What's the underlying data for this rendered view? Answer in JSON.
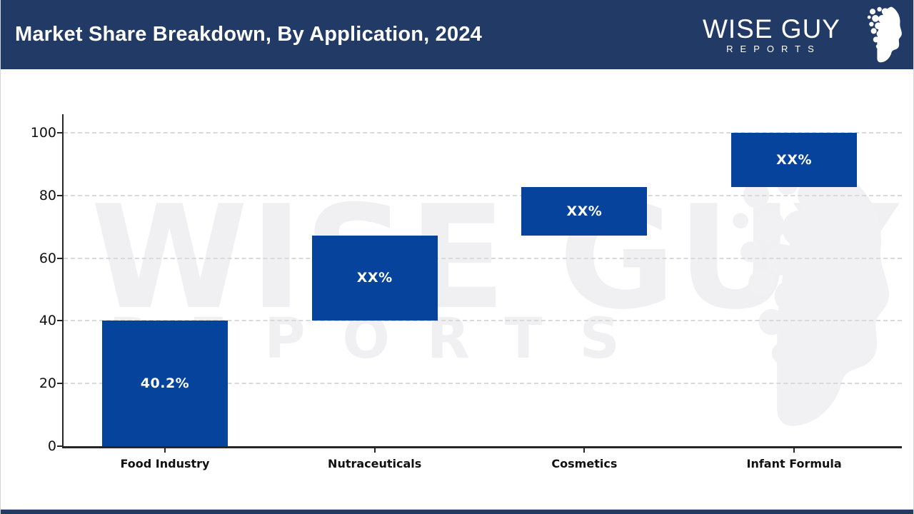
{
  "header": {
    "title": "Market Share Breakdown, By Application, 2024",
    "bg_color": "#213A66"
  },
  "logo": {
    "line1": "WISE GUY",
    "line2": "REPORTS"
  },
  "watermark": {
    "line1": "WISE GUY",
    "line2": "REPORTS"
  },
  "chart_data": {
    "type": "bar",
    "subtype": "waterfall",
    "title": "Market Share Breakdown, By Application, 2024",
    "categories": [
      "Food Industry",
      "Nutraceuticals",
      "Cosmetics",
      "Infant Formula"
    ],
    "segments": [
      {
        "start": 0,
        "end": 40.2
      },
      {
        "start": 40.2,
        "end": 67.2
      },
      {
        "start": 67.2,
        "end": 82.7
      },
      {
        "start": 82.7,
        "end": 100
      }
    ],
    "values": [
      40.2,
      27.0,
      15.5,
      17.3
    ],
    "bar_labels": [
      "40.2%",
      "XX%",
      "XX%",
      "XX%"
    ],
    "yticks": [
      0,
      20,
      40,
      60,
      80,
      100
    ],
    "ylim": [
      0,
      105
    ],
    "xlabel": "",
    "ylabel": "",
    "grid": "horizontal-dashed",
    "legend": "none",
    "bar_color": "#05439C",
    "label_color": "#FFFFFF"
  }
}
